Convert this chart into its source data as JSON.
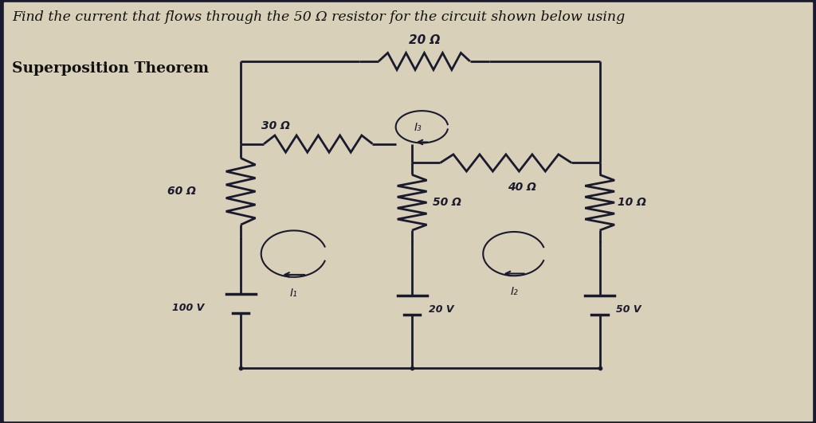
{
  "title_line1": "Find the current that flows through the 50 Ω resistor for the circuit shown below using",
  "title_line2": "Superposition Theorem",
  "bg_outer": "#1a1a2e",
  "bg_panel": "#d8d0b8",
  "circuit_color": "#1a1a2e",
  "xL": 0.295,
  "xM": 0.505,
  "xR": 0.735,
  "yTop": 0.855,
  "yMidTop": 0.66,
  "yMidBot": 0.615,
  "yBot": 0.13,
  "label_20": "20 Ω",
  "label_30": "30 Ω",
  "label_40": "40 Ω",
  "label_60": "60 Ω",
  "label_50": "50 Ω",
  "label_10": "10 Ω",
  "label_100V": "100 V",
  "label_20V": "20 V",
  "label_50V": "50 V",
  "label_I1": "I₁",
  "label_I2": "I₂",
  "label_I3": "I₃"
}
